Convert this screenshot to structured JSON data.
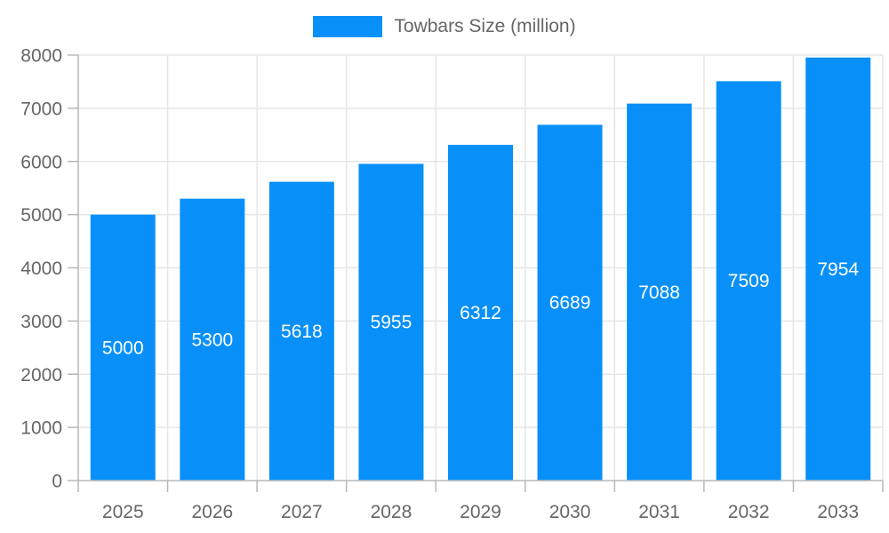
{
  "chart_data": {
    "type": "bar",
    "title": "Towbars Size (million)",
    "categories": [
      "2025",
      "2026",
      "2027",
      "2028",
      "2029",
      "2030",
      "2031",
      "2032",
      "2033"
    ],
    "values": [
      5000,
      5300,
      5618,
      5955,
      6312,
      6689,
      7088,
      7509,
      7954
    ],
    "xlabel": "",
    "ylabel": "",
    "ylim": [
      0,
      8000
    ],
    "ytick_step": 1000,
    "ytick_labels": [
      "0",
      "1000",
      "2000",
      "3000",
      "4000",
      "5000",
      "6000",
      "7000",
      "8000"
    ],
    "grid": true,
    "legend_position": "top",
    "value_labels": "inside-center-white",
    "colors": {
      "bar": "#0990f8",
      "grid": "#e6e6e6",
      "axis": "#b8b8b8",
      "tick_text": "#666666",
      "value_label": "#ffffff",
      "background": "#ffffff"
    }
  }
}
